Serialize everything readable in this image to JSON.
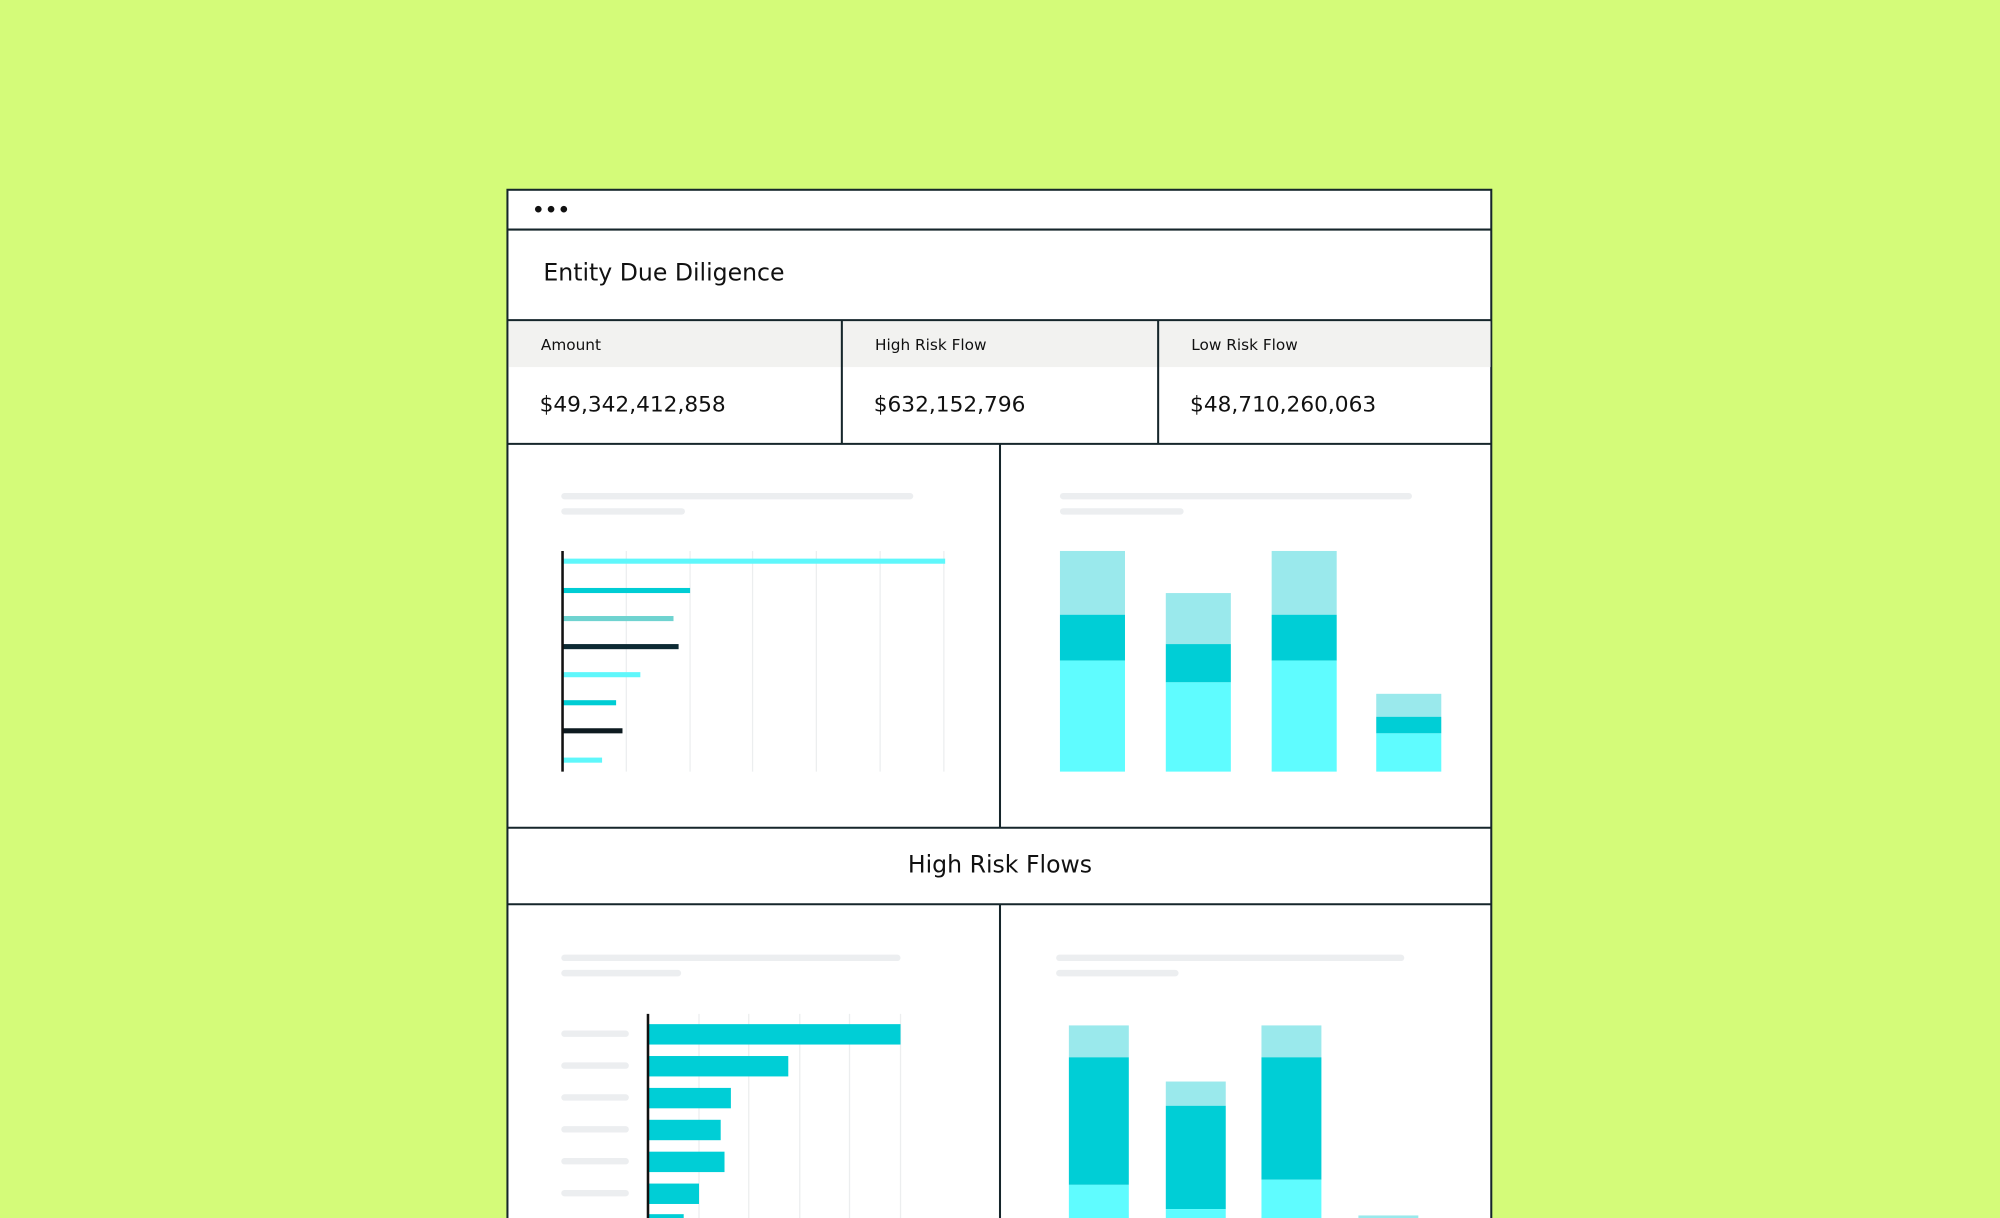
{
  "window": {
    "title": "Entity Due Diligence"
  },
  "metrics": [
    {
      "label": "Amount",
      "value": "$49,342,412,858"
    },
    {
      "label": "High Risk Flow",
      "value": "$632,152,796"
    },
    {
      "label": "Low Risk Flow",
      "value": "$48,710,260,063"
    }
  ],
  "section": {
    "title": "High Risk Flows"
  }
}
